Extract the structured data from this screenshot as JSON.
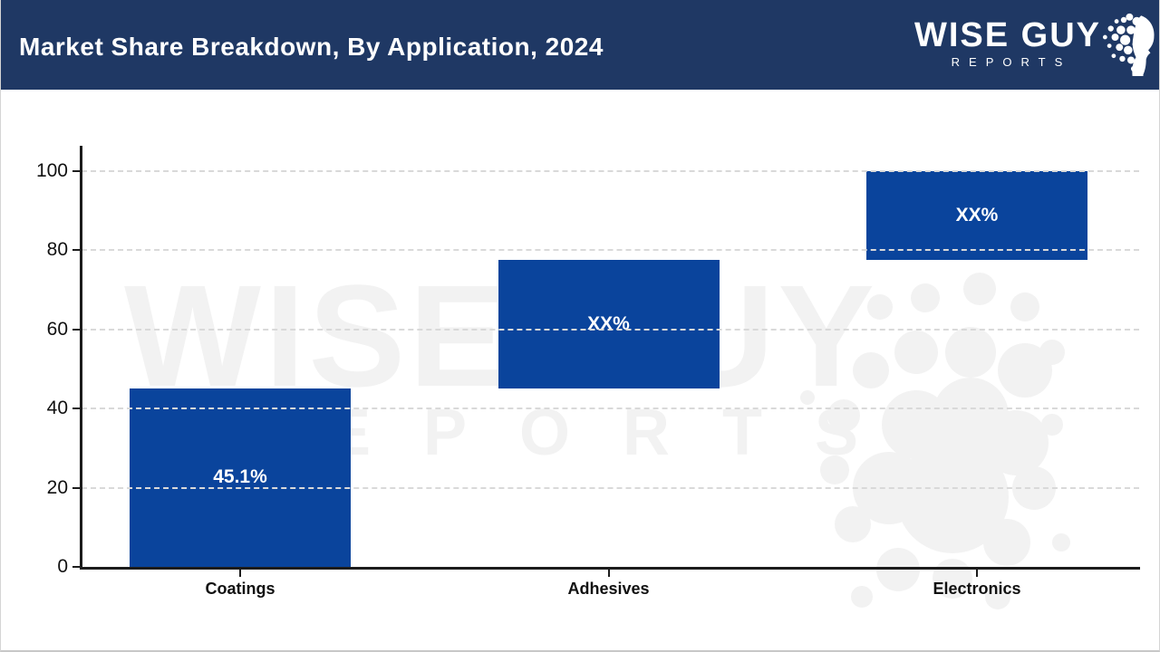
{
  "header": {
    "title": "Market Share Breakdown, By Application, 2024",
    "logo": {
      "line1": "WISE GUY",
      "line2": "REPORTS"
    }
  },
  "watermark": {
    "line1": "WISE GUY",
    "line2": "REPORTS"
  },
  "colors": {
    "header_bg": "#1f3864",
    "bar": "#0a449c",
    "bar_label": "#ffffff",
    "grid": "#d9d9d9",
    "axis": "#1c1c1c",
    "watermark": "#f2f2f2"
  },
  "chart_data": {
    "type": "bar",
    "subtype": "waterfall-floating-bars",
    "title": "Market Share Breakdown, By Application, 2024",
    "categories": [
      "Coatings",
      "Adhesives",
      "Electronics"
    ],
    "segments": [
      {
        "category": "Coatings",
        "start": 0,
        "end": 45.1,
        "label": "45.1%"
      },
      {
        "category": "Adhesives",
        "start": 45.1,
        "end": 77.4,
        "label": "XX%"
      },
      {
        "category": "Electronics",
        "start": 77.4,
        "end": 100,
        "label": "XX%"
      }
    ],
    "xlabel": "",
    "ylabel": "",
    "ylim": [
      0,
      100
    ],
    "yticks": [
      0,
      20,
      40,
      60,
      80,
      100
    ],
    "grid": "horizontal-dashed",
    "legend": "none"
  }
}
